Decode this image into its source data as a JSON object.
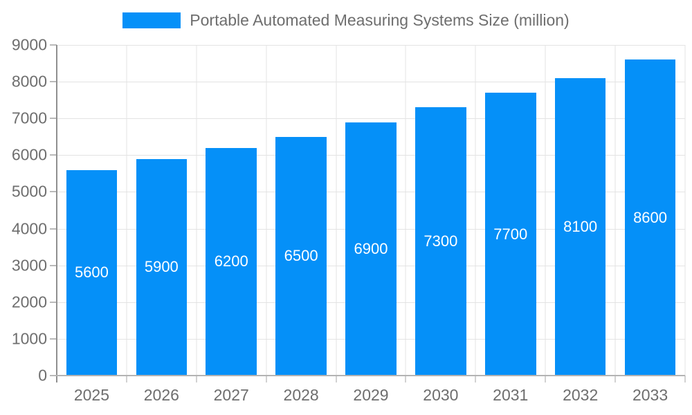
{
  "chart_data": {
    "type": "bar",
    "title": "Portable Automated Measuring Systems Size (million)",
    "legend": [
      "Portable Automated Measuring Systems Size (million)"
    ],
    "legend_position": "top",
    "categories": [
      "2025",
      "2026",
      "2027",
      "2028",
      "2029",
      "2030",
      "2031",
      "2032",
      "2033"
    ],
    "values": [
      5600,
      5900,
      6200,
      6500,
      6900,
      7300,
      7700,
      8100,
      8600
    ],
    "xlabel": "",
    "ylabel": "",
    "ylim": [
      0,
      9000
    ],
    "ytick_step": 1000,
    "grid": true,
    "bar_fraction": 0.73,
    "bar_color": "#0590f8",
    "bar_label_color": "#ffffff",
    "axis_text_color": "#6e6e6e",
    "gridline_color": "#e3e3e3"
  }
}
